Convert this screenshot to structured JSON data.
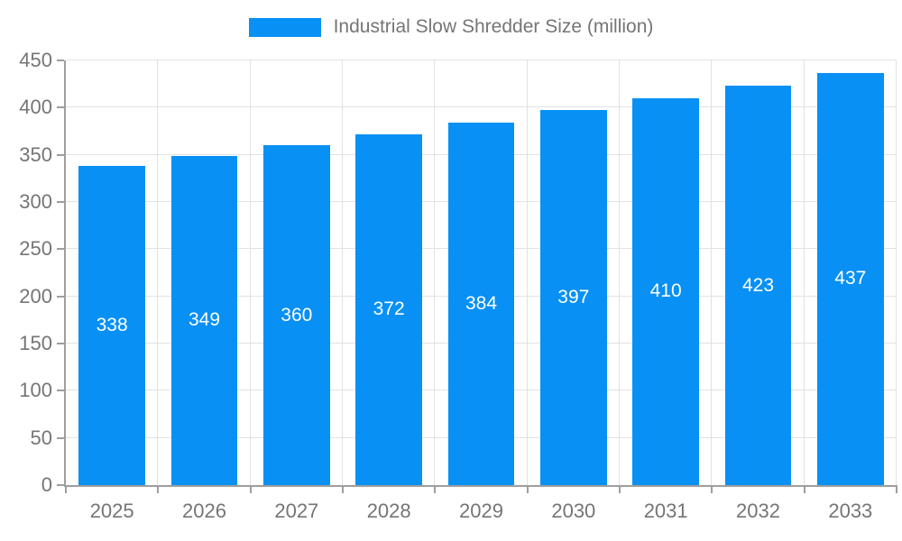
{
  "legend": {
    "label": "Industrial Slow Shredder Size (million)"
  },
  "chart_data": {
    "type": "bar",
    "title": "Industrial Slow Shredder Size (million)",
    "categories": [
      "2025",
      "2026",
      "2027",
      "2028",
      "2029",
      "2030",
      "2031",
      "2032",
      "2033"
    ],
    "values": [
      338,
      349,
      360,
      372,
      384,
      397,
      410,
      423,
      437
    ],
    "xlabel": "",
    "ylabel": "",
    "ylim": [
      0,
      450
    ],
    "ytick_step": 50,
    "ytick_labels": [
      "0",
      "50",
      "100",
      "150",
      "200",
      "250",
      "300",
      "350",
      "400",
      "450"
    ],
    "grid": true,
    "legend_position": "top-center",
    "value_labels": "centered-in-bar",
    "colors": {
      "bar": "#0890F5",
      "grid": "#E2E2E2",
      "axis": "#9E9E9E",
      "tick_text": "#757575",
      "value_label": "#FFFFFF",
      "legend_text": "#757575",
      "background": "#FFFFFF"
    }
  }
}
